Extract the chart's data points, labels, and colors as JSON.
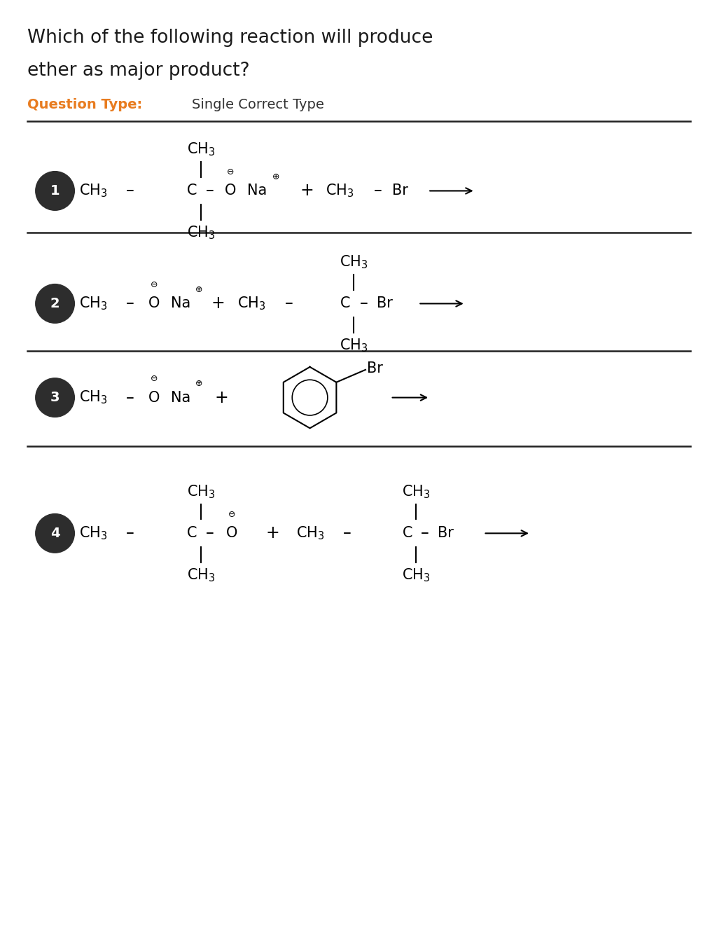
{
  "bg_color": "#ffffff",
  "title_color": "#1a1a1a",
  "qt_label_color": "#e87c20",
  "qt_value_color": "#333333",
  "circle_color": "#2d2d2d",
  "circle_text_color": "#ffffff",
  "line_color": "#222222",
  "title_line1": "Which of the following reaction will produce",
  "title_line2": "ether as major product?",
  "qt_label": "Question Type:",
  "qt_value": "Single Correct Type"
}
